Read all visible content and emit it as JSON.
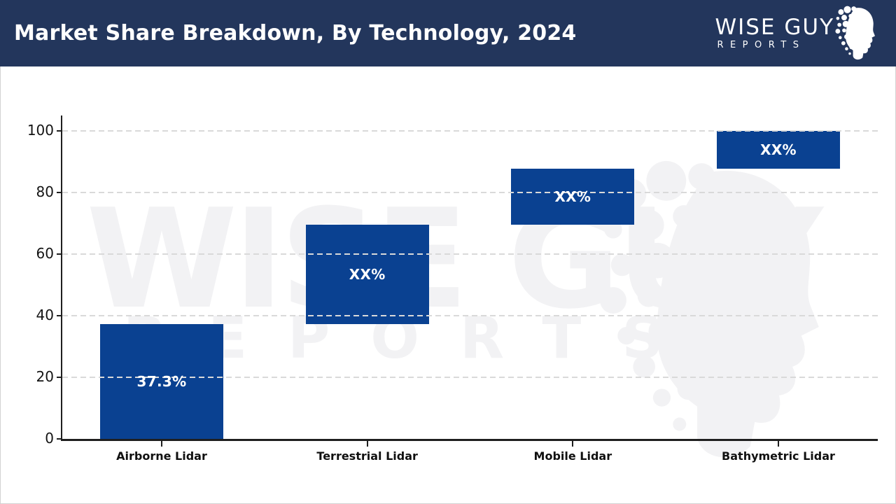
{
  "header": {
    "title": "Market Share Breakdown, By Technology, 2024",
    "brand": {
      "wordmark": "WISE GUY",
      "subtitle": "REPORTS"
    }
  },
  "watermark": {
    "wordmark": "WISE GUY",
    "subtitle": "REPORTS"
  },
  "colors": {
    "header_bg": "#23365c",
    "bar": "#0a4191",
    "grid": "#d9d9d9",
    "axis": "#1f1f1f",
    "bar_label": "#ffffff",
    "watermark": "#f2f2f4",
    "tick_label": "#141414",
    "category_label": "#101010"
  },
  "chart_data": {
    "type": "bar",
    "subtype": "waterfall-floating-bars",
    "title": "Market Share Breakdown, By Technology, 2024",
    "categories": [
      "Airborne Lidar",
      "Terrestrial Lidar",
      "Mobile Lidar",
      "Bathymetric Lidar"
    ],
    "segments": [
      {
        "category": "Airborne Lidar",
        "start": 0,
        "end": 37.3,
        "label": "37.3%"
      },
      {
        "category": "Terrestrial Lidar",
        "start": 37.3,
        "end": 69.5,
        "label": "XX%"
      },
      {
        "category": "Mobile Lidar",
        "start": 69.5,
        "end": 87.8,
        "label": "XX%"
      },
      {
        "category": "Bathymetric Lidar",
        "start": 87.8,
        "end": 100,
        "label": "XX%"
      }
    ],
    "yticks": [
      0,
      20,
      40,
      60,
      80,
      100
    ],
    "ylim": [
      0,
      105
    ],
    "xlabel": "",
    "ylabel": "",
    "grid": "horizontal-dashed-over-bars",
    "legend": "none"
  }
}
